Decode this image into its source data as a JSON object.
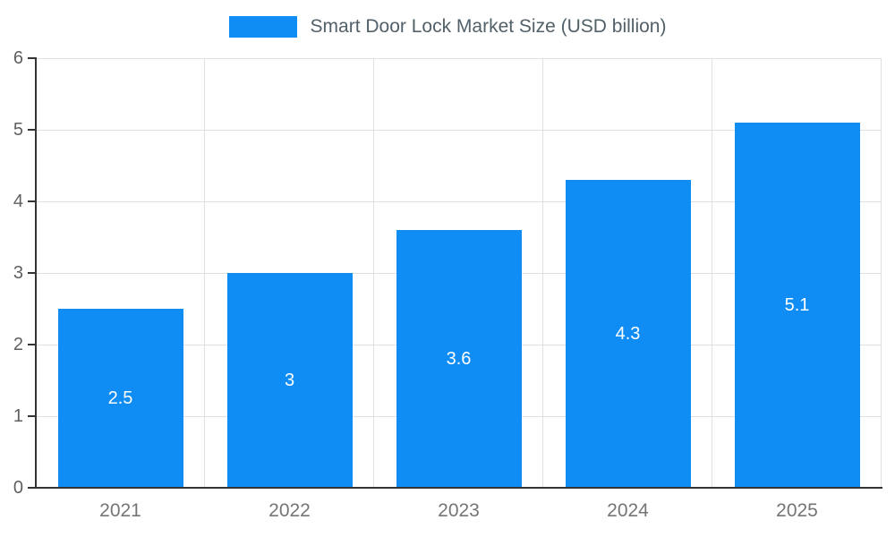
{
  "chart_data": {
    "type": "bar",
    "title": "Smart Door Lock Market Size (USD billion)",
    "categories": [
      "2021",
      "2022",
      "2023",
      "2024",
      "2025"
    ],
    "values": [
      2.5,
      3,
      3.6,
      4.3,
      5.1
    ],
    "value_labels": [
      "2.5",
      "3",
      "3.6",
      "4.3",
      "5.1"
    ],
    "xlabel": "",
    "ylabel": "",
    "ylim": [
      0,
      6
    ],
    "yticks": [
      0,
      1,
      2,
      3,
      4,
      5,
      6
    ],
    "grid": true,
    "legend_position": "top"
  },
  "colors": {
    "bar": "#0f8df5",
    "bar_label_text": "#ffffff",
    "gridline": "#e0e0e0",
    "axis_line": "#333333",
    "y_tick_text": "#5f5f5f",
    "x_tick_text": "#757575",
    "legend_text": "#526069",
    "background": "#ffffff"
  }
}
